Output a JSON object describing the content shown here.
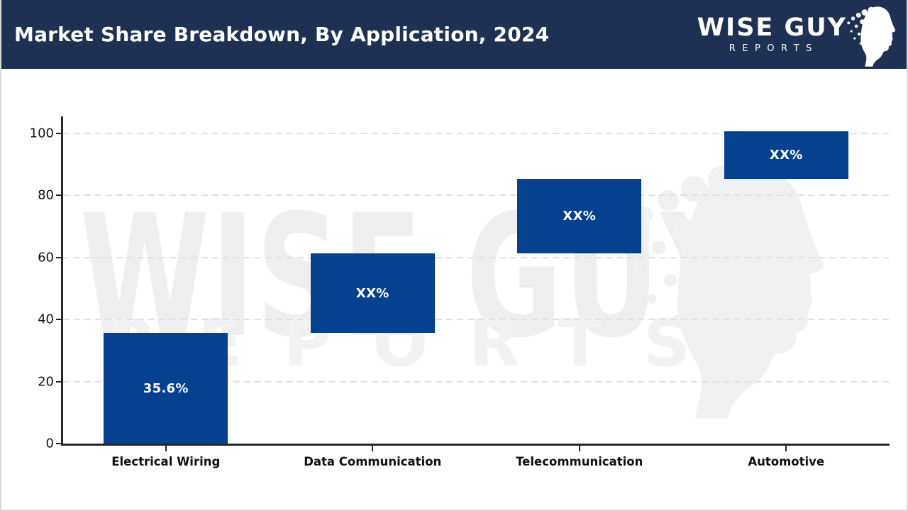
{
  "header": {
    "title": "Market Share Breakdown, By Application, 2024",
    "logo": {
      "line1": "WISE GUY",
      "line2": "REPORTS"
    }
  },
  "watermark": {
    "line1": "WISE GUY",
    "line2": "REPORTS"
  },
  "chart_data": {
    "type": "bar",
    "subtype": "floating-segment-waterfall",
    "title": "Market Share Breakdown, By Application, 2024",
    "categories": [
      "Electrical Wiring",
      "Data Communication",
      "Telecommunication",
      "Automotive"
    ],
    "bars": [
      {
        "category": "Electrical Wiring",
        "start": 0,
        "end": 35.6,
        "label": "35.6%"
      },
      {
        "category": "Data Communication",
        "start": 35.6,
        "end": 61.3,
        "label": "XX%"
      },
      {
        "category": "Telecommunication",
        "start": 61.3,
        "end": 85.3,
        "label": "XX%"
      },
      {
        "category": "Automotive",
        "start": 85.3,
        "end": 100.5,
        "label": "XX%"
      }
    ],
    "xlabel": "",
    "ylabel": "",
    "yticks": [
      0,
      20,
      40,
      60,
      80,
      100
    ],
    "ylim": [
      0,
      105
    ],
    "grid": "horizontal-dashed",
    "legend": "none",
    "bar_color": "#05418f",
    "bar_label_color": "#ffffff",
    "axis_color": "#262626",
    "grid_color": "#e1e1e1",
    "header_bg_color": "#1e3154",
    "watermark_color": "#efefef"
  }
}
